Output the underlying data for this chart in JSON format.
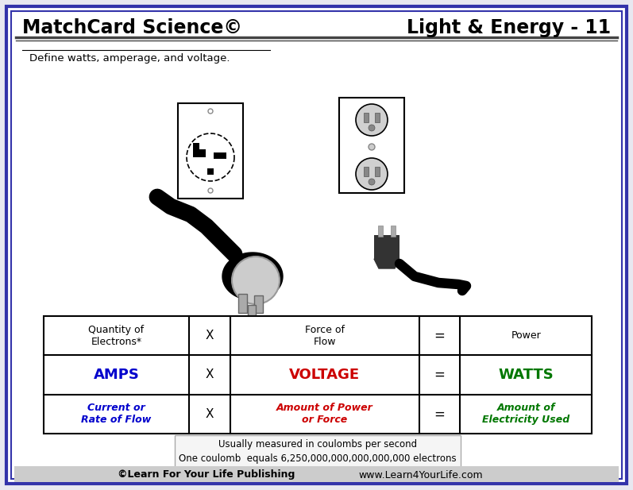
{
  "title_left": "MatchCard Science©",
  "title_right": "Light & Energy - 11",
  "subtitle": "Define watts, amperage, and voltage.",
  "bg_color": "#e8e8f0",
  "border_color": "#3333aa",
  "amps_color": "#0000cc",
  "voltage_color": "#cc0000",
  "watts_color": "#007700",
  "note1": "Usually measured in coulombs per second",
  "note2": "One coulomb  equals 6,250,000,000,000,000,000 electrons",
  "footer_bold": "©Learn For Your Life Publishing",
  "footer_plain": "www.Learn4YourLife.com"
}
